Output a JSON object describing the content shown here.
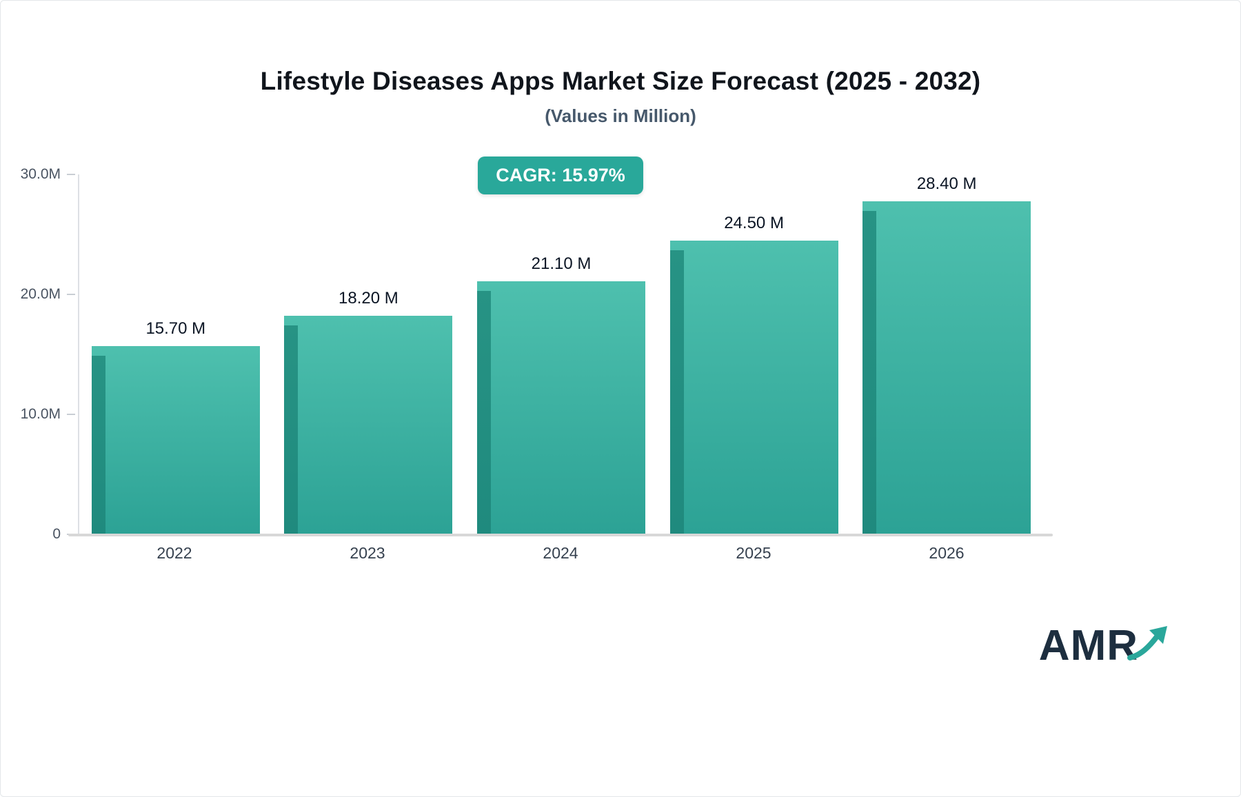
{
  "chart_data": {
    "type": "bar",
    "title": "Lifestyle Diseases Apps Market Size Forecast (2025 - 2032)",
    "subtitle": "(Values in Million)",
    "badge": "CAGR: 15.97%",
    "categories": [
      "2022",
      "2023",
      "2024",
      "2025",
      "2026"
    ],
    "values": [
      15.7,
      18.2,
      21.1,
      24.5,
      28.4
    ],
    "value_labels": [
      "15.70 M",
      "18.20 M",
      "21.10 M",
      "24.50 M",
      "28.40 M"
    ],
    "ylabel": "",
    "xlabel": "",
    "ylim": [
      0,
      30
    ],
    "yticks": [
      {
        "v": 30,
        "label": "30.0M"
      },
      {
        "v": 20,
        "label": "20.0M"
      },
      {
        "v": 10,
        "label": "10.0M"
      },
      {
        "v": 0,
        "label": "0"
      }
    ],
    "grid": "off",
    "legend": "none",
    "bar_color_top": "#4ec0ae",
    "bar_color_bottom": "#2ca295",
    "bar_side_color": "#1f8a7e",
    "accent": "#29a89a"
  },
  "logo": {
    "text": "AMR"
  }
}
